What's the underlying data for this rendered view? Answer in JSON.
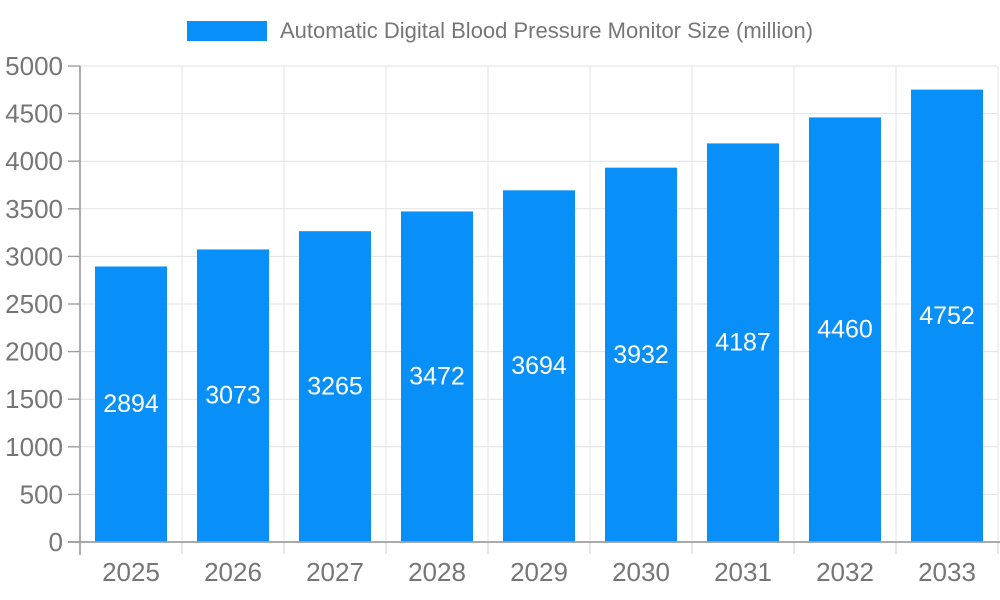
{
  "chart_data": {
    "type": "bar",
    "title": "Automatic Digital Blood Pressure Monitor Size (million)",
    "legend_position": "top",
    "categories": [
      "2025",
      "2026",
      "2027",
      "2028",
      "2029",
      "2030",
      "2031",
      "2032",
      "2033"
    ],
    "series": [
      {
        "name": "Automatic Digital Blood Pressure Monitor Size (million)",
        "values": [
          2894,
          3073,
          3265,
          3472,
          3694,
          3932,
          4187,
          4460,
          4752
        ]
      }
    ],
    "xlabel": "",
    "ylabel": "",
    "ylim": [
      0,
      5000
    ],
    "ytick_step": 500,
    "yticks": [
      0,
      500,
      1000,
      1500,
      2000,
      2500,
      3000,
      3500,
      4000,
      4500,
      5000
    ],
    "grid": true,
    "value_labels": "inside-middle-white",
    "colors": {
      "bar": "#0890f8",
      "value_label": "#ffffff",
      "axis_text": "#767676",
      "axis_line": "#9e9e9e",
      "gridline": "#e3e3e3",
      "outer_tick": "#d6d6d6",
      "background": "#ffffff"
    }
  }
}
